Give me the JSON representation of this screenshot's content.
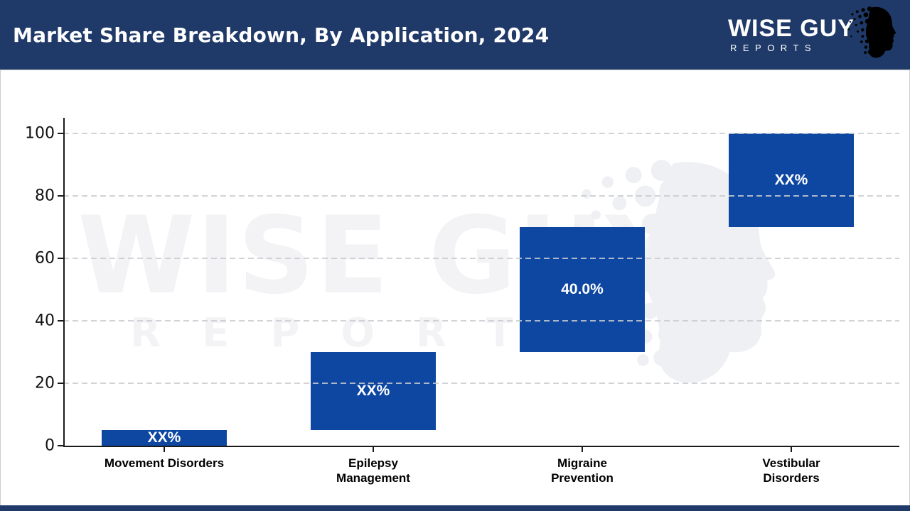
{
  "header": {
    "title": "Market Share Breakdown, By Application, 2024",
    "logo": {
      "wordmark": "WISE GUY",
      "subtext": "REPORTS"
    }
  },
  "watermark": {
    "wordmark": "WISE GUY",
    "subtext": "REPORTS"
  },
  "colors": {
    "header_bg": "#1f3a68",
    "bar": "#0d47a1",
    "grid": "#d9d9d9",
    "panel_border": "#cccccc",
    "bar_label": "#ffffff"
  },
  "chart_data": {
    "type": "bar",
    "subtype": "waterfall-floating-bars",
    "title": "Market Share Breakdown, By Application, 2024",
    "categories": [
      "Movement Disorders",
      "Epilepsy Management",
      "Migraine Prevention",
      "Vestibular Disorders"
    ],
    "category_lines": [
      [
        "Movement Disorders"
      ],
      [
        "Epilepsy",
        "Management"
      ],
      [
        "Migraine",
        "Prevention"
      ],
      [
        "Vestibular",
        "Disorders"
      ]
    ],
    "bars": [
      {
        "category": "Movement Disorders",
        "start": 0,
        "end": 5,
        "label": "XX%"
      },
      {
        "category": "Epilepsy Management",
        "start": 5,
        "end": 30,
        "label": "XX%"
      },
      {
        "category": "Migraine Prevention",
        "start": 30,
        "end": 70,
        "label": "40.0%"
      },
      {
        "category": "Vestibular Disorders",
        "start": 70,
        "end": 100,
        "label": "XX%"
      }
    ],
    "yticks": [
      0,
      20,
      40,
      60,
      80,
      100
    ],
    "ylim": [
      0,
      105
    ],
    "xlabel": "",
    "ylabel": "",
    "grid": "horizontal-dashed",
    "legend": "none"
  }
}
